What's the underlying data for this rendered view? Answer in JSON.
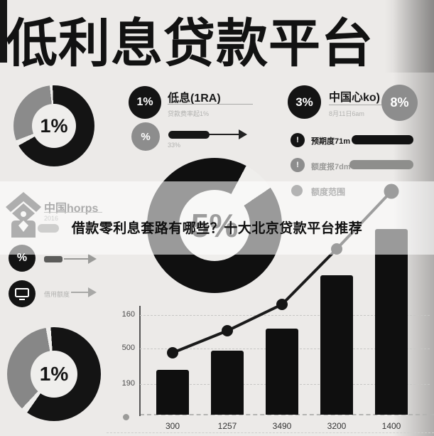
{
  "title": "低利息贷款平台",
  "overlay_headline": "借款零利息套路有哪些？十大北京贷款平台推荐",
  "top_left_donut": {
    "value": "1%"
  },
  "low_interest_block": {
    "badge": "1%",
    "heading": "低息(1RA)",
    "subtitle": "贷款费率起1%",
    "percent_badge": "%",
    "note": "33%"
  },
  "china_block": {
    "badge": "3%",
    "heading": "中国心ko)",
    "subtitle": "8月11日6am",
    "badge2": "8%",
    "row1_icon": "!",
    "row1_label": "预期度71m",
    "row2_icon": "!",
    "row2_label": "额度报7dm",
    "row3_label": "额度范围"
  },
  "horps_block": {
    "heading": "中国horps",
    "subtitle": "2016"
  },
  "left_rows": {
    "percent_badge": "%",
    "monitor_label": "借用额度"
  },
  "center_donut": {
    "value": "5%"
  },
  "bottom_left_donut": {
    "value": "1%"
  },
  "chart_data": {
    "type": "bar+line",
    "title": "",
    "categories": [
      "300",
      "1257",
      "3490",
      "3200",
      "1400"
    ],
    "series": [
      {
        "name": "bars",
        "type": "bar",
        "values": [
          63,
          90,
          121,
          196,
          261
        ],
        "unit": "estimated px height above baseline"
      },
      {
        "name": "trend",
        "type": "line",
        "values": [
          87,
          118,
          155,
          233,
          314
        ],
        "unit": "estimated px height above baseline"
      }
    ],
    "y_tick_labels": [
      "160",
      "500",
      "190"
    ],
    "grid": "dashed horizontal gridlines",
    "legend": "none",
    "colors": {
      "bar": "#0f0f0f",
      "line": "#1a1a1a",
      "grid": "#c7c7c5"
    }
  }
}
